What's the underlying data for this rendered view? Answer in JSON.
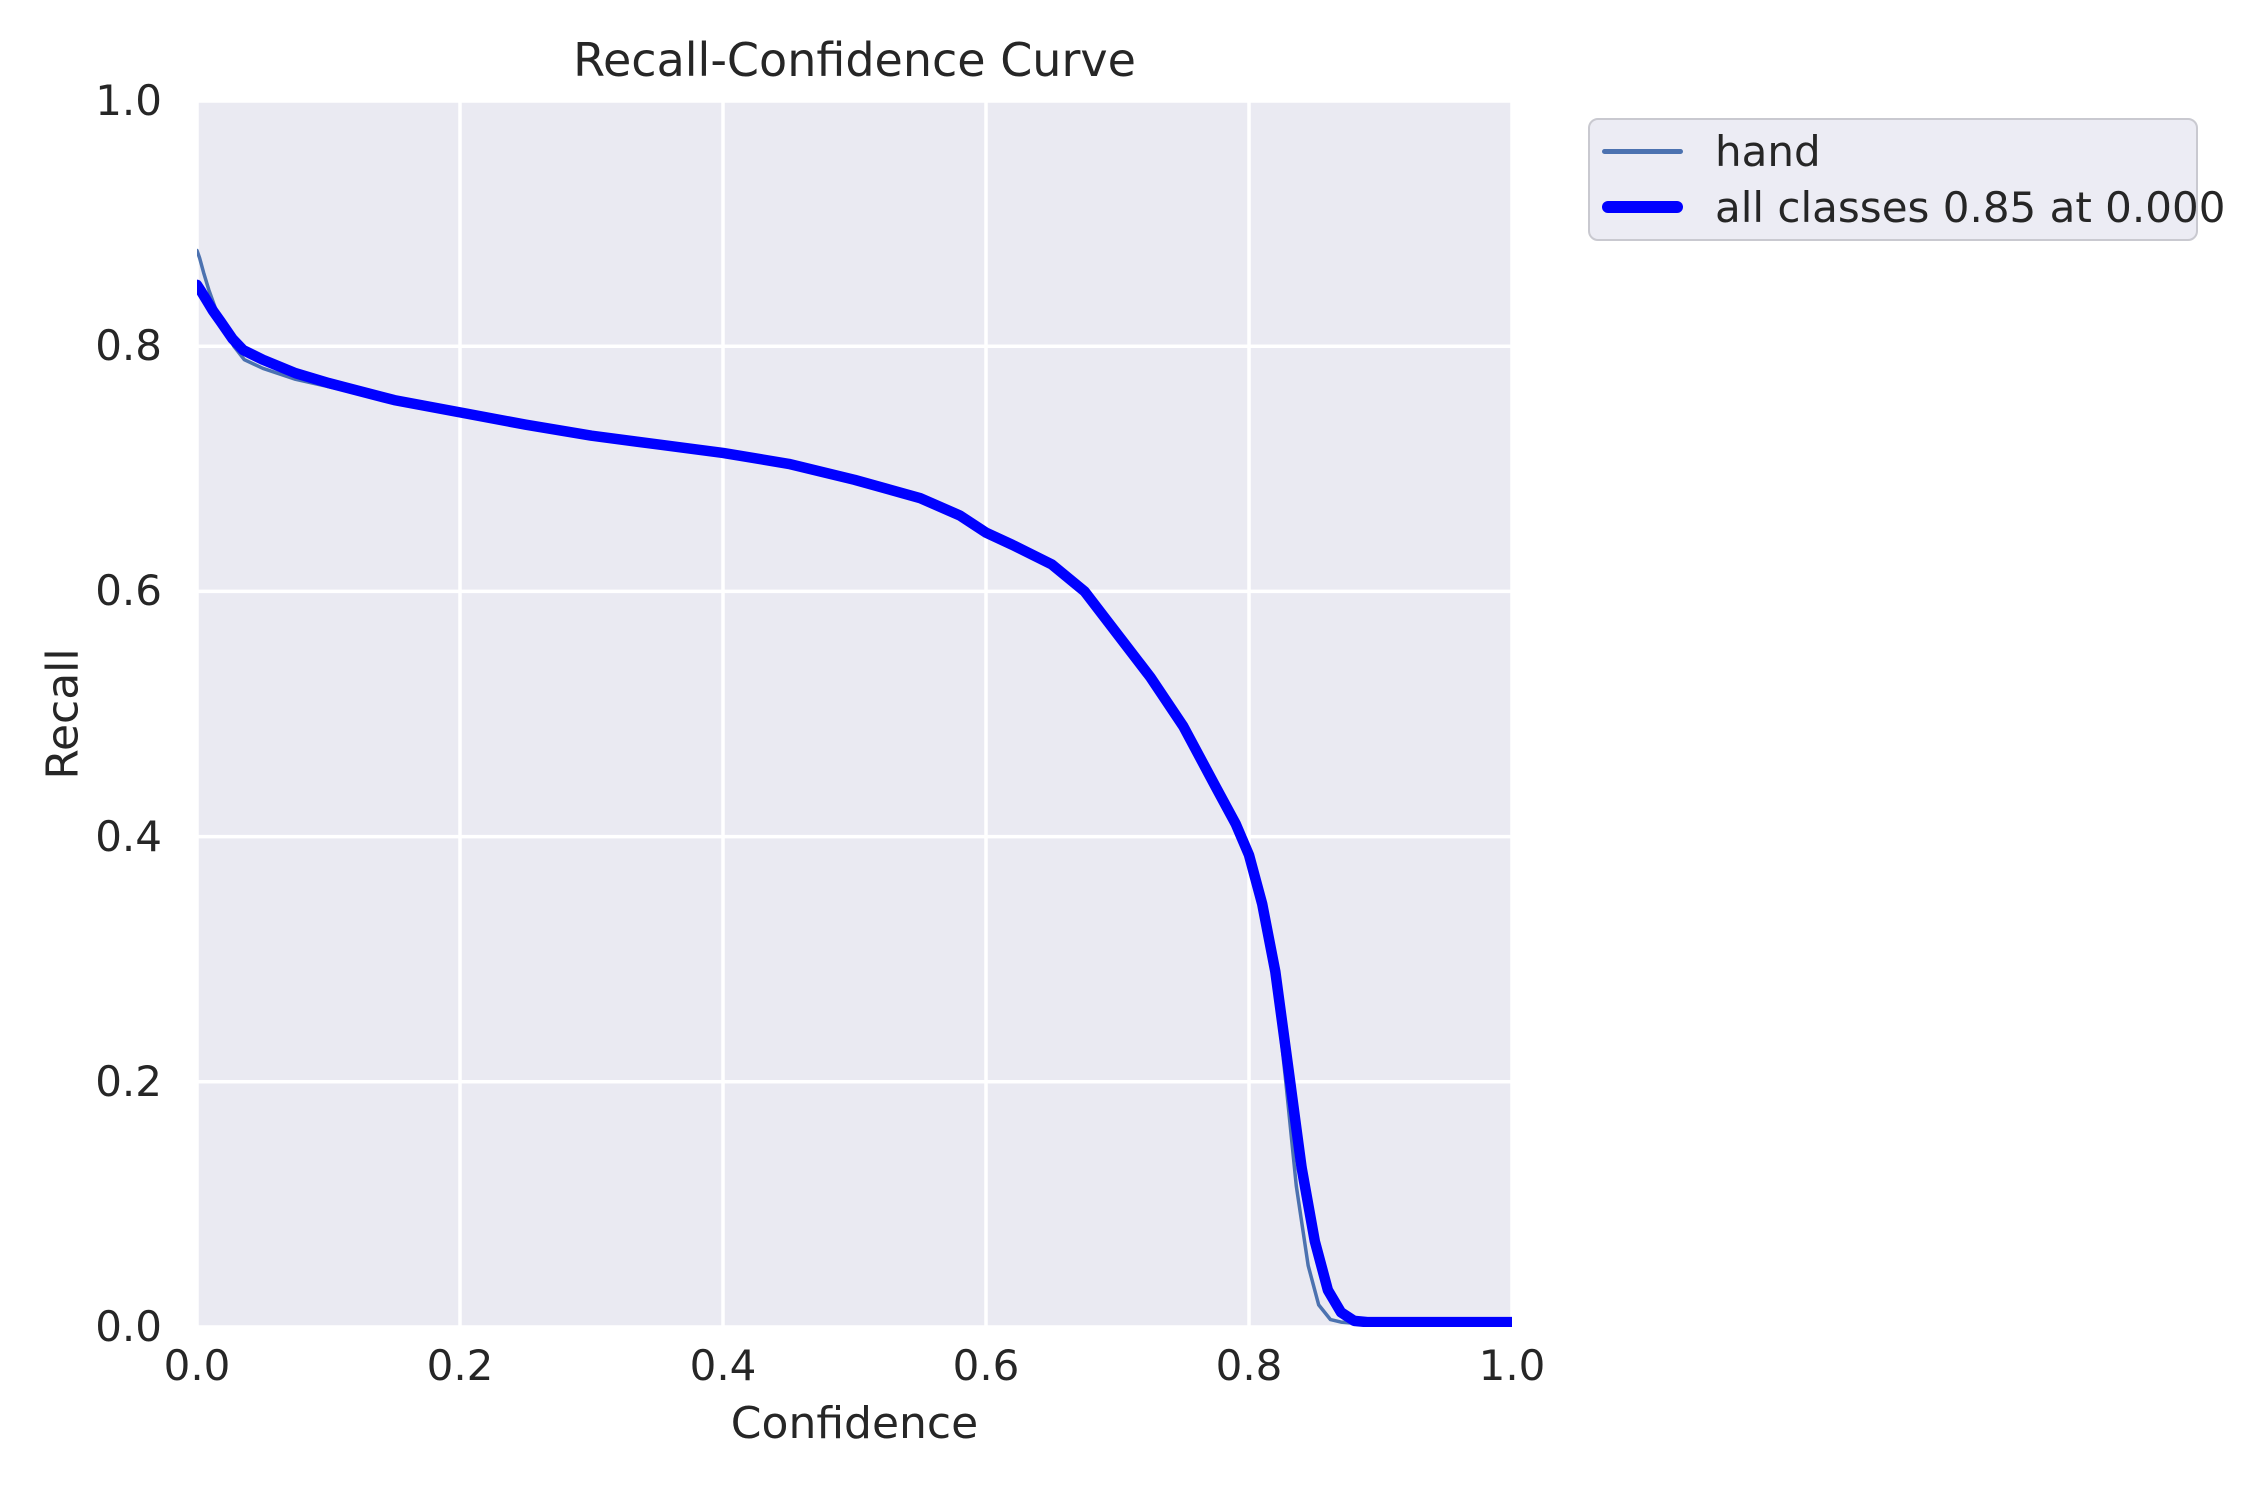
{
  "figure": {
    "title": "Recall-Confidence Curve"
  },
  "legend": {
    "entries": [
      {
        "label": "hand"
      },
      {
        "label": "all classes 0.85 at 0.000"
      }
    ]
  },
  "chart_data": {
    "type": "line",
    "title": "Recall-Confidence Curve",
    "xlabel": "Confidence",
    "ylabel": "Recall",
    "xlim": [
      0.0,
      1.0
    ],
    "ylim": [
      0.0,
      1.0
    ],
    "grid": true,
    "grid_color": "#ffffff",
    "background_color": "#eaeaf2",
    "text_color": "#262626",
    "legend_position": "outside upper right",
    "x_tick_labels": [
      "0.0",
      "0.2",
      "0.4",
      "0.6",
      "0.8",
      "1.0"
    ],
    "y_tick_labels": [
      "0.0",
      "0.2",
      "0.4",
      "0.6",
      "0.8",
      "1.0"
    ],
    "annotation": "all classes recall 0.85 at confidence 0.000",
    "series": [
      {
        "name": "hand",
        "color": "#4C72B0",
        "line_width": 3.5,
        "points": [
          [
            0.0,
            0.878
          ],
          [
            0.002,
            0.872
          ],
          [
            0.005,
            0.86
          ],
          [
            0.009,
            0.846
          ],
          [
            0.014,
            0.831
          ],
          [
            0.02,
            0.816
          ],
          [
            0.028,
            0.8
          ],
          [
            0.036,
            0.789
          ],
          [
            0.05,
            0.782
          ],
          [
            0.075,
            0.773
          ],
          [
            0.1,
            0.767
          ],
          [
            0.15,
            0.755
          ],
          [
            0.2,
            0.746
          ],
          [
            0.25,
            0.736
          ],
          [
            0.3,
            0.727
          ],
          [
            0.35,
            0.72
          ],
          [
            0.4,
            0.713
          ],
          [
            0.45,
            0.704
          ],
          [
            0.5,
            0.691
          ],
          [
            0.55,
            0.676
          ],
          [
            0.58,
            0.662
          ],
          [
            0.6,
            0.648
          ],
          [
            0.62,
            0.638
          ],
          [
            0.65,
            0.622
          ],
          [
            0.675,
            0.6
          ],
          [
            0.7,
            0.565
          ],
          [
            0.725,
            0.53
          ],
          [
            0.75,
            0.49
          ],
          [
            0.775,
            0.44
          ],
          [
            0.79,
            0.41
          ],
          [
            0.8,
            0.385
          ],
          [
            0.81,
            0.34
          ],
          [
            0.82,
            0.28
          ],
          [
            0.828,
            0.2
          ],
          [
            0.836,
            0.115
          ],
          [
            0.845,
            0.05
          ],
          [
            0.853,
            0.018
          ],
          [
            0.862,
            0.006
          ],
          [
            0.87,
            0.004
          ],
          [
            0.88,
            0.003
          ],
          [
            1.0,
            0.003
          ]
        ]
      },
      {
        "name": "all classes 0.85 at 0.000",
        "color": "#0000ff",
        "line_width": 10.5,
        "points": [
          [
            0.0,
            0.85
          ],
          [
            0.003,
            0.845
          ],
          [
            0.007,
            0.838
          ],
          [
            0.012,
            0.829
          ],
          [
            0.018,
            0.82
          ],
          [
            0.027,
            0.806
          ],
          [
            0.035,
            0.797
          ],
          [
            0.05,
            0.789
          ],
          [
            0.075,
            0.778
          ],
          [
            0.1,
            0.77
          ],
          [
            0.15,
            0.756
          ],
          [
            0.2,
            0.746
          ],
          [
            0.25,
            0.736
          ],
          [
            0.3,
            0.727
          ],
          [
            0.35,
            0.72
          ],
          [
            0.4,
            0.713
          ],
          [
            0.45,
            0.704
          ],
          [
            0.5,
            0.691
          ],
          [
            0.55,
            0.676
          ],
          [
            0.58,
            0.662
          ],
          [
            0.6,
            0.648
          ],
          [
            0.62,
            0.638
          ],
          [
            0.65,
            0.622
          ],
          [
            0.675,
            0.6
          ],
          [
            0.7,
            0.565
          ],
          [
            0.725,
            0.53
          ],
          [
            0.75,
            0.49
          ],
          [
            0.775,
            0.44
          ],
          [
            0.79,
            0.41
          ],
          [
            0.8,
            0.385
          ],
          [
            0.81,
            0.345
          ],
          [
            0.82,
            0.29
          ],
          [
            0.83,
            0.21
          ],
          [
            0.84,
            0.13
          ],
          [
            0.85,
            0.07
          ],
          [
            0.86,
            0.03
          ],
          [
            0.87,
            0.012
          ],
          [
            0.88,
            0.005
          ],
          [
            0.89,
            0.004
          ],
          [
            0.9,
            0.004
          ],
          [
            1.0,
            0.004
          ]
        ]
      }
    ]
  }
}
